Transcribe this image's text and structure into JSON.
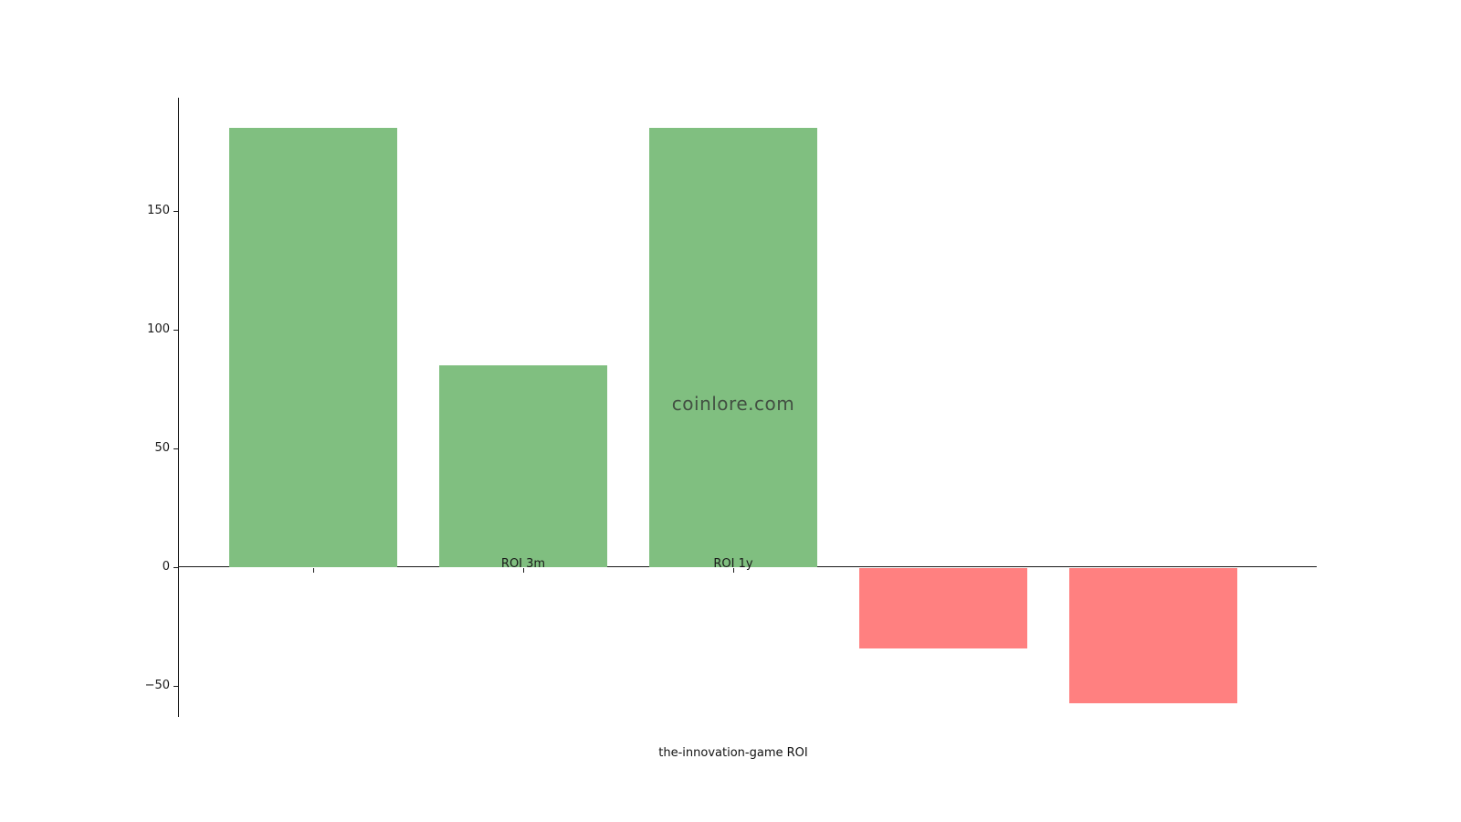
{
  "chart_data": {
    "type": "bar",
    "title": "the-innovation-game ROI",
    "watermark": "coinlore.com",
    "categories": [
      "",
      "ROI 3m",
      "ROI 1y",
      "",
      ""
    ],
    "values": [
      185,
      85,
      185,
      -34,
      -57
    ],
    "series": [
      {
        "name": "ROI",
        "values": [
          185,
          85,
          185,
          -34,
          -57
        ]
      }
    ],
    "yticks": [
      150,
      100,
      50,
      0,
      -50
    ],
    "ytick_labels": [
      "150",
      "100",
      "50",
      "0",
      "−50"
    ],
    "ylim": [
      -63,
      198
    ],
    "xlabel": "",
    "ylabel": "",
    "grid": false,
    "legend_position": "none",
    "positive_color": "#80bf80",
    "negative_color": "#ff8080",
    "axis_color": "#1a1a1a",
    "xtick_mark_indices": [
      0,
      1,
      2
    ]
  }
}
